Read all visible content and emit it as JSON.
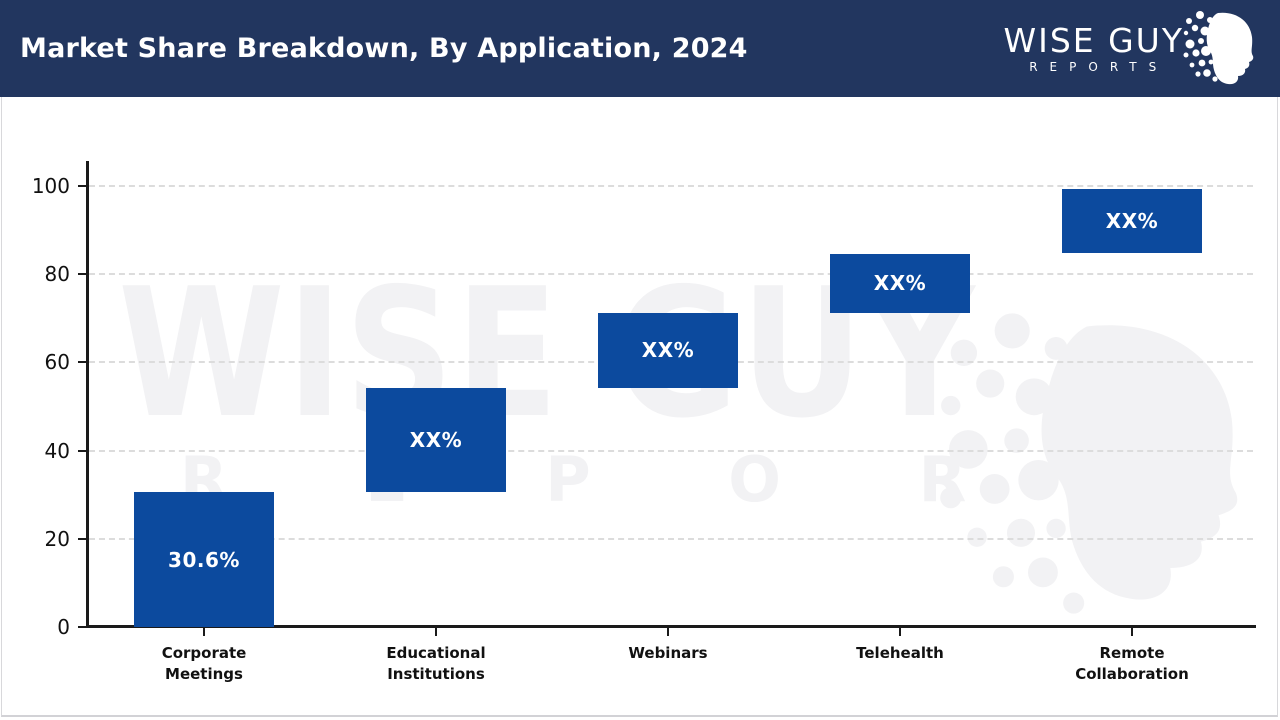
{
  "header": {
    "title": "Market Share Breakdown, By Application, 2024",
    "logo_line1": "WISE GUY",
    "logo_line2": "REPORTS",
    "bg_color": "#22365f"
  },
  "watermark": {
    "line1": "WISE GUY",
    "line2": "R E P O R T S"
  },
  "chart_data": {
    "type": "bar",
    "subtype": "waterfall",
    "title": "Market Share Breakdown, By Application, 2024",
    "xlabel": "",
    "ylabel": "",
    "categories": [
      "Corporate Meetings",
      "Educational Institutions",
      "Webinars",
      "Telehealth",
      "Remote Collaboration"
    ],
    "segments": [
      {
        "category": "Corporate Meetings",
        "start": 0,
        "end": 30.6,
        "label": "30.6%"
      },
      {
        "category": "Educational Institutions",
        "start": 30.6,
        "end": 54.3,
        "label": "XX%"
      },
      {
        "category": "Webinars",
        "start": 54.3,
        "end": 71.1,
        "label": "XX%"
      },
      {
        "category": "Telehealth",
        "start": 71.3,
        "end": 84.6,
        "label": "XX%"
      },
      {
        "category": "Remote Collaboration",
        "start": 84.8,
        "end": 99.4,
        "label": "XX%"
      }
    ],
    "yticks": [
      0,
      20,
      40,
      60,
      80,
      100
    ],
    "ylim": [
      0,
      105
    ],
    "grid": "horizontal-dashed",
    "legend": "none",
    "bar_color": "#0c4a9e",
    "bar_label_color": "#ffffff"
  }
}
